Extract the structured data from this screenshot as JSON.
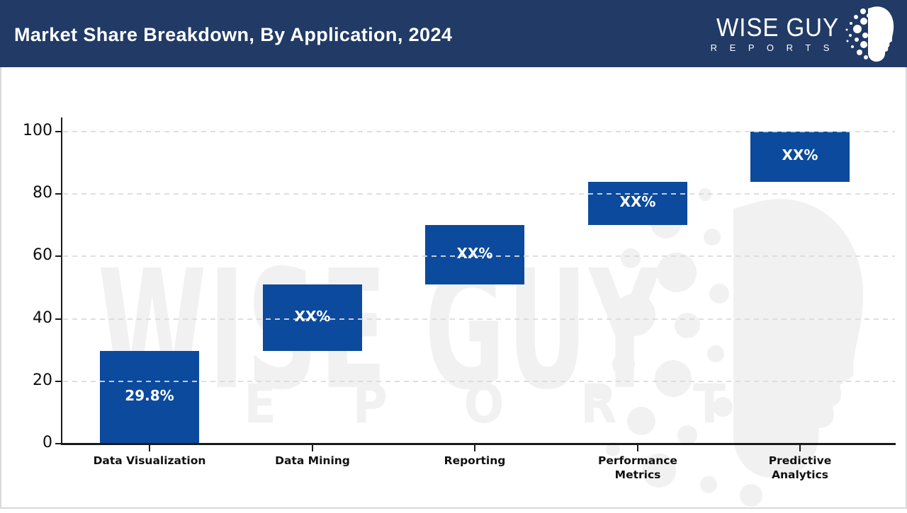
{
  "header": {
    "title": "Market Share Breakdown, By Application, 2024",
    "logo": {
      "primary": "WISE GUY",
      "secondary": "R E P O R T S",
      "icon": "dotted-face-profile"
    }
  },
  "watermark": {
    "primary": "WISE GUY",
    "secondary": "R E P O R T S",
    "icon": "dotted-face-profile"
  },
  "colors": {
    "header_bg": "#213a66",
    "bar": "#0b4a9d",
    "value_label": "#ffffff",
    "watermark": "#f1f1f1",
    "gridline": "#dbdbdb",
    "axis": "#1a1a1a"
  },
  "chart_data": {
    "type": "bar",
    "subtype": "waterfall",
    "title": "Market Share Breakdown, By Application, 2024",
    "categories": [
      "Data Visualization",
      "Data Mining",
      "Reporting",
      "Performance Metrics",
      "Predictive Analytics"
    ],
    "category_lines": [
      [
        "Data Visualization"
      ],
      [
        "Data Mining"
      ],
      [
        "Reporting"
      ],
      [
        "Performance",
        "Metrics"
      ],
      [
        "Predictive",
        "Analytics"
      ]
    ],
    "bars": [
      {
        "category": "Data Visualization",
        "start": 0,
        "end": 29.8,
        "label": "29.8%"
      },
      {
        "category": "Data Mining",
        "start": 29.8,
        "end": 51,
        "label": "XX%"
      },
      {
        "category": "Reporting",
        "start": 51,
        "end": 70,
        "label": "XX%"
      },
      {
        "category": "Performance Metrics",
        "start": 70,
        "end": 84,
        "label": "XX%"
      },
      {
        "category": "Predictive Analytics",
        "start": 84,
        "end": 100,
        "label": "XX%"
      }
    ],
    "xlabel": "",
    "ylabel": "",
    "yticks": [
      0,
      20,
      40,
      60,
      80,
      100
    ],
    "ylim": [
      0,
      104
    ],
    "grid": "dashed-horizontal",
    "legend": "none"
  }
}
